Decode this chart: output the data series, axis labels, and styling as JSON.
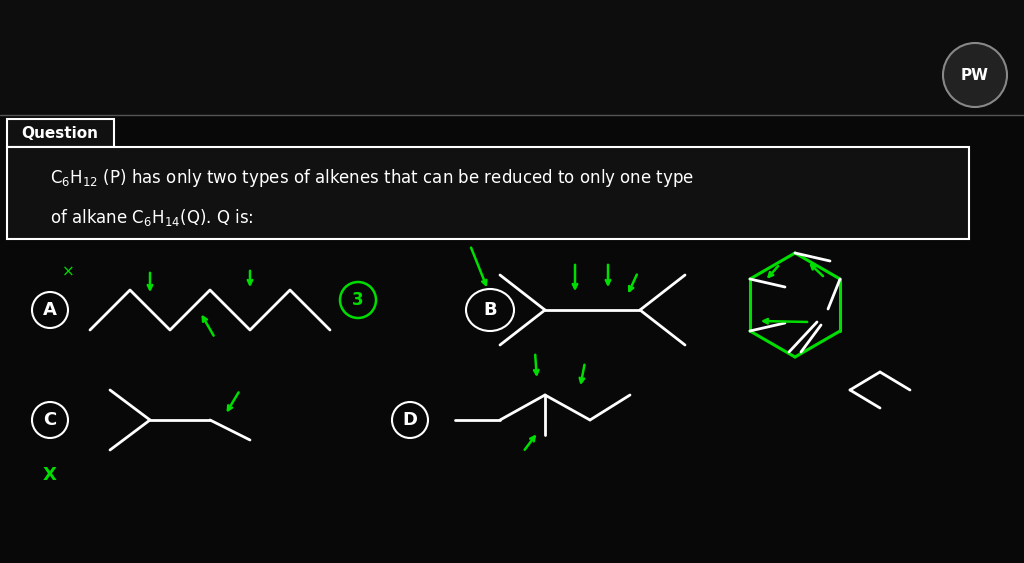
{
  "bg_color": "#080808",
  "white": "#ffffff",
  "green": "#00dd00",
  "question_label": "Question",
  "line1": "C$_6$H$_{12}$ (P) has only two types of alkenes that can be reduced to only one type",
  "line2": "of alkane C$_6$H$_{14}$(Q). Q is:"
}
